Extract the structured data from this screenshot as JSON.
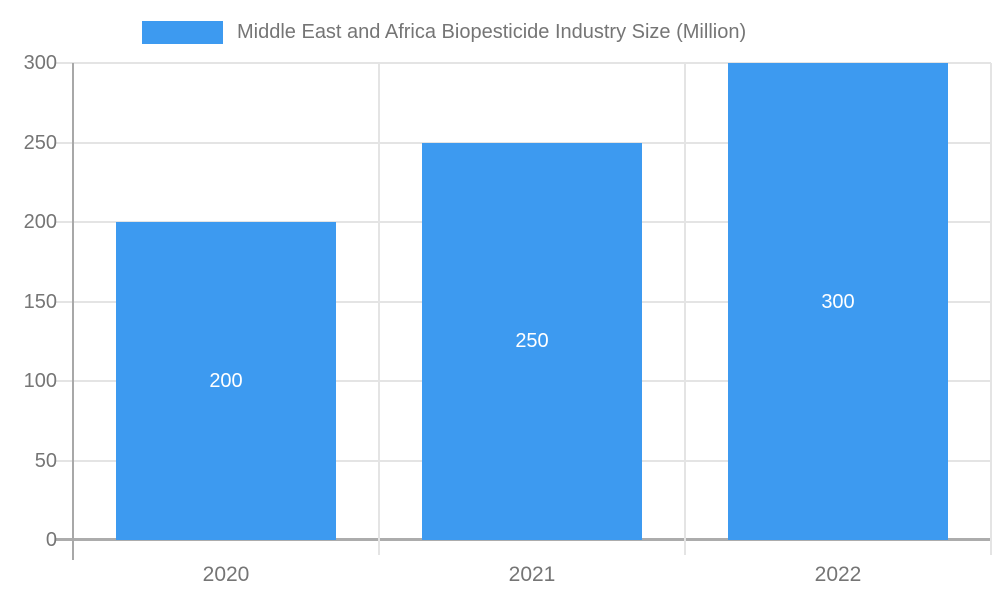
{
  "chart_data": {
    "type": "bar",
    "title": "Middle East and Africa Biopesticide Industry Size (Million)",
    "legend": {
      "label": "Middle East and Africa Biopesticide Industry Size (Million)",
      "position": "top"
    },
    "categories": [
      "2020",
      "2021",
      "2022"
    ],
    "series": [
      {
        "name": "Middle East and Africa Biopesticide Industry Size (Million)",
        "values": [
          200,
          250,
          300
        ]
      }
    ],
    "value_labels": [
      "200",
      "250",
      "300"
    ],
    "xlabel": "",
    "ylabel": "",
    "ylim": [
      0,
      300
    ],
    "ytick_step": 50,
    "yticks": [
      0,
      50,
      100,
      150,
      200,
      250,
      300
    ],
    "grid": true,
    "colors": {
      "bar": "#3D9AF0",
      "gridline": "#E4E4E4",
      "axis_line": "#A8A8A8",
      "baseline": "#ACACAC",
      "axis_text": "#757575",
      "legend_text": "#757575",
      "value_label_text": "#FFFFFF",
      "background": "#FFFFFF"
    }
  }
}
